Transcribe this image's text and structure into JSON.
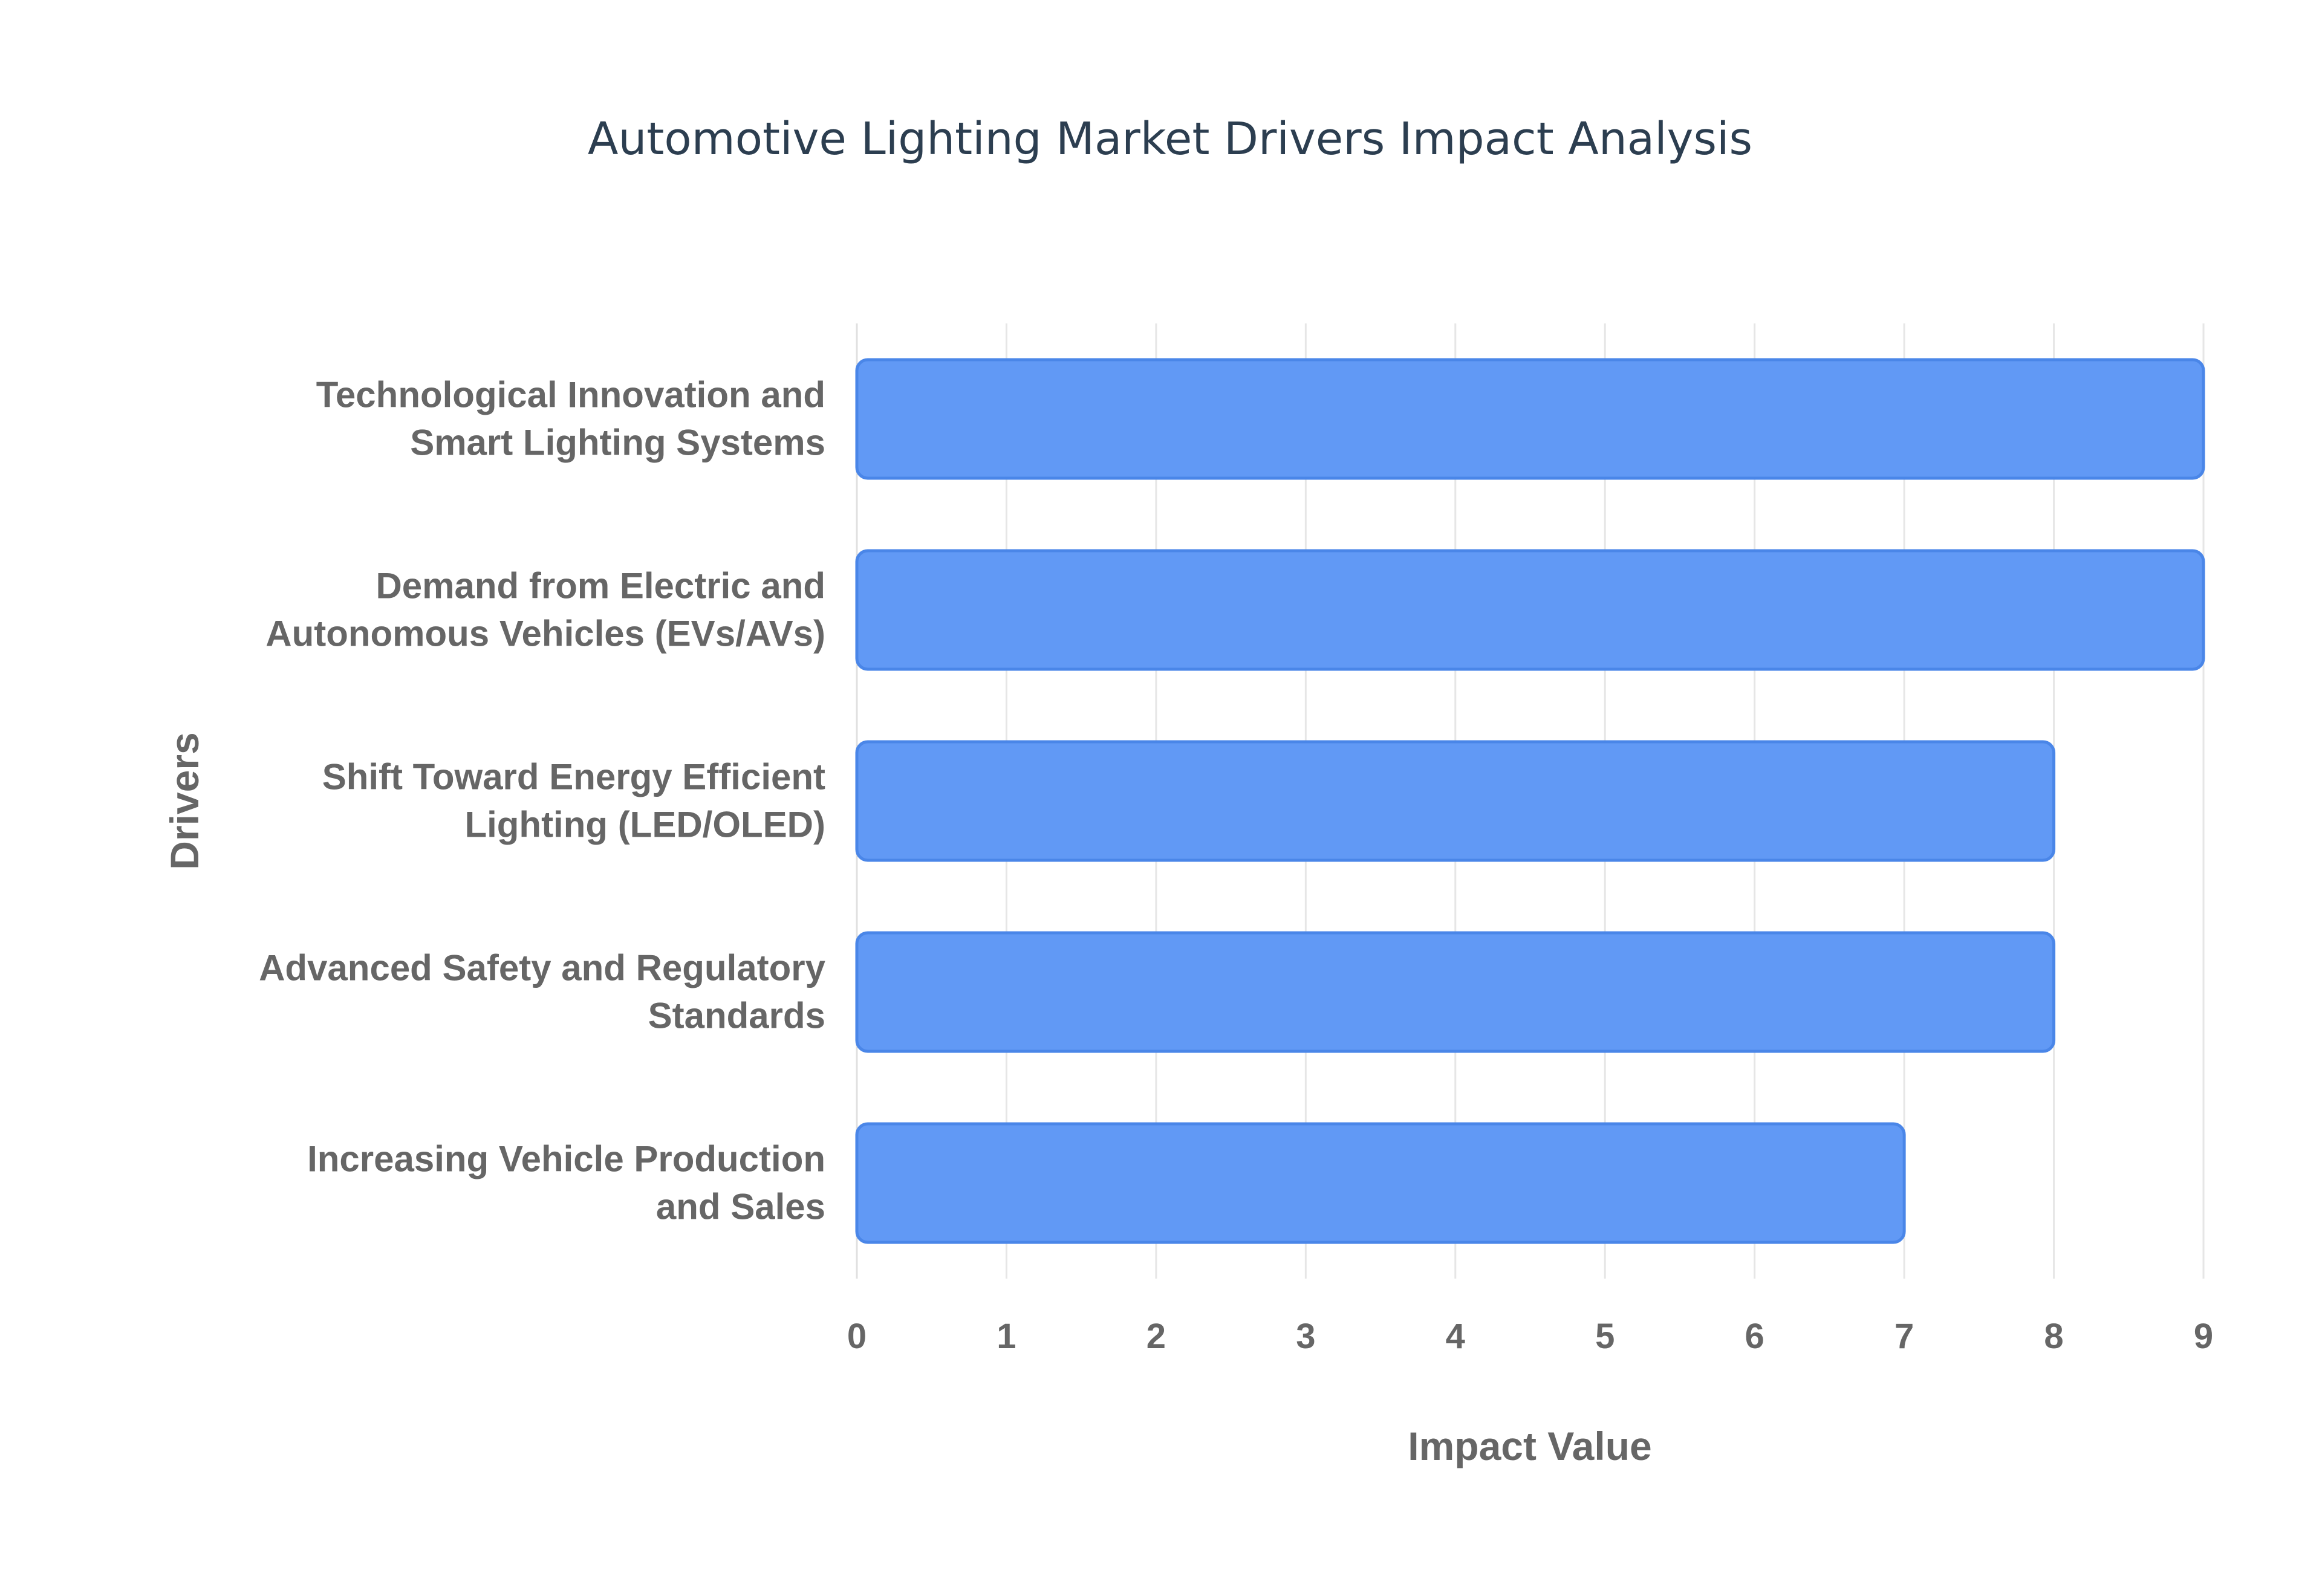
{
  "chart_data": {
    "type": "bar",
    "orientation": "horizontal",
    "title": "Automotive Lighting Market Drivers Impact Analysis",
    "xlabel": "Impact Value",
    "ylabel": "Drivers",
    "xlim": [
      0,
      9
    ],
    "xticks": [
      "0",
      "1",
      "2",
      "3",
      "4",
      "5",
      "6",
      "7",
      "8",
      "9"
    ],
    "categories": [
      [
        "Technological Innovation and",
        "Smart Lighting Systems"
      ],
      [
        "Demand from Electric and",
        "Autonomous Vehicles (EVs/AVs)"
      ],
      [
        "Shift Toward Energy Efficient",
        "Lighting (LED/OLED)"
      ],
      [
        "Advanced Safety and Regulatory",
        "Standards"
      ],
      [
        "Increasing Vehicle Production",
        "and Sales"
      ]
    ],
    "values": [
      9,
      9,
      8,
      8,
      7
    ],
    "grid": true,
    "legend": "none",
    "colors": {
      "bar_fill": "#6199f5",
      "bar_stroke": "#4a86e8",
      "grid": "#e6e6e6",
      "text": "#666666",
      "title": "#2c3e50"
    }
  }
}
